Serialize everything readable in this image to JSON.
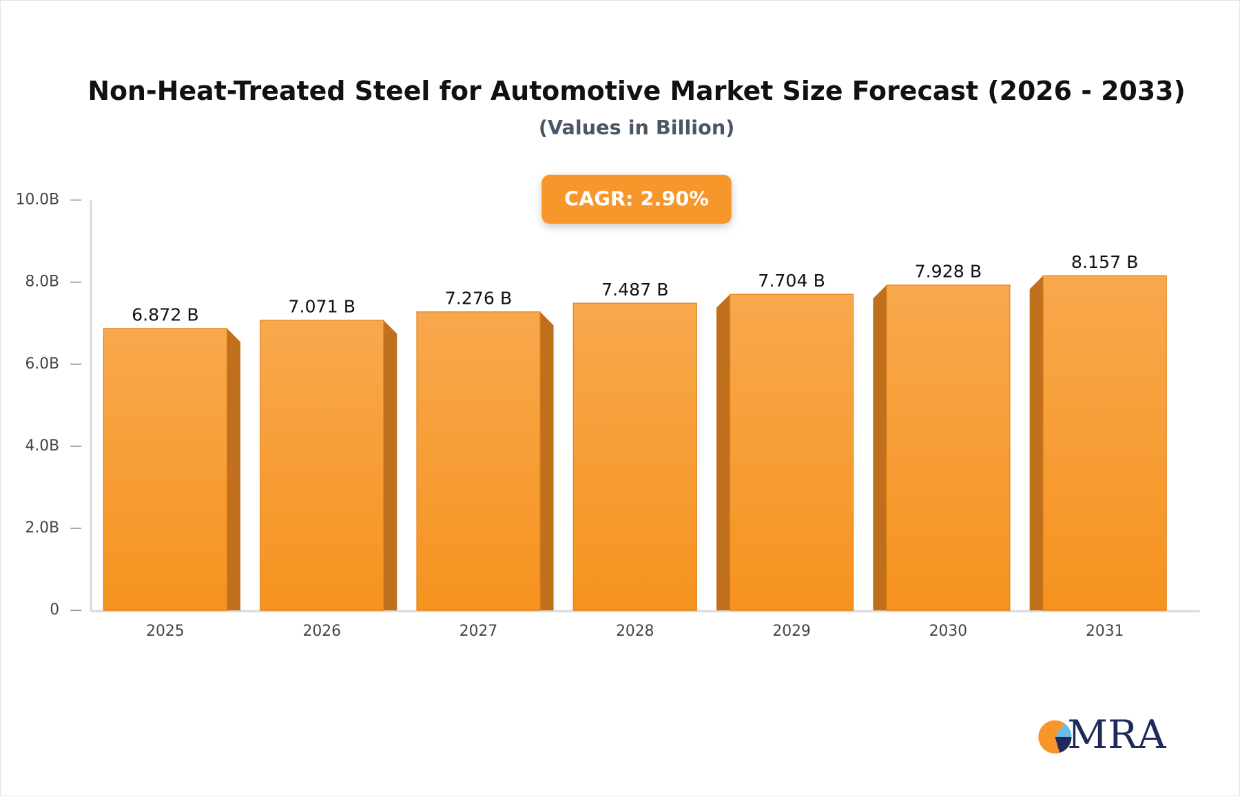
{
  "chart_data": {
    "type": "bar",
    "title": "Non-Heat-Treated Steel for Automotive Market Size Forecast (2026 - 2033)",
    "subtitle": "(Values in Billion)",
    "annotation": "CAGR: 2.90%",
    "logo": "MRA",
    "categories": [
      "2025",
      "2026",
      "2027",
      "2028",
      "2029",
      "2030",
      "2031"
    ],
    "values": [
      6.872,
      7.071,
      7.276,
      7.487,
      7.704,
      7.928,
      8.157
    ],
    "value_labels": [
      "6.872 B",
      "7.071 B",
      "7.276 B",
      "7.487 B",
      "7.704 B",
      "7.928 B",
      "8.157 B"
    ],
    "color": "#f7962a",
    "ylim": [
      0,
      10
    ],
    "yticks": [
      0,
      {
        "value": 2,
        "label": "2.0B"
      },
      {
        "value": 4,
        "label": "4.0B"
      },
      {
        "value": 6,
        "label": "6.0B"
      },
      {
        "value": 8,
        "label": "8.0B"
      },
      {
        "value": 10,
        "label": "10.0B"
      }
    ],
    "grid": false
  }
}
